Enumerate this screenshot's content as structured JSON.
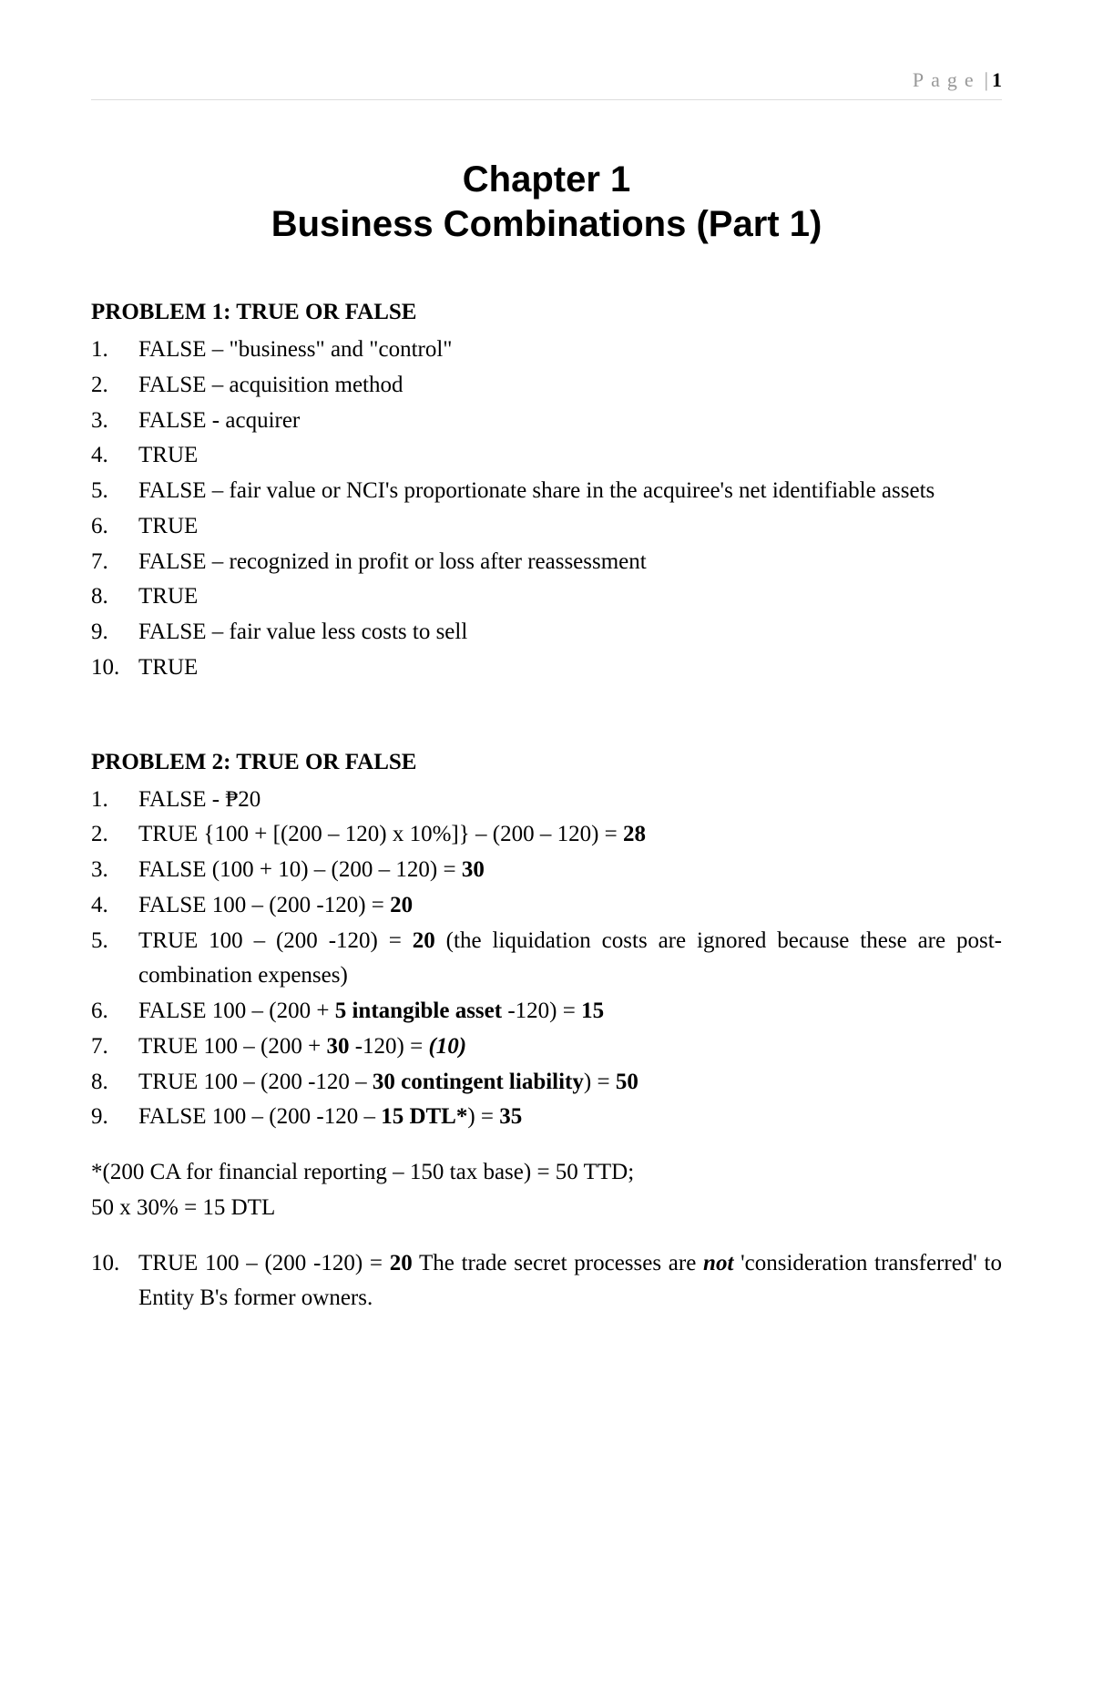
{
  "header": {
    "label": "Page",
    "separator": "|",
    "number": "1"
  },
  "chapter": {
    "line1": "Chapter 1",
    "line2": "Business Combinations (Part 1)"
  },
  "problem1": {
    "heading": "PROBLEM 1: TRUE OR FALSE",
    "items": [
      {
        "n": "1.",
        "parts": [
          {
            "t": "FALSE – \"business\" and \"control\""
          }
        ]
      },
      {
        "n": "2.",
        "parts": [
          {
            "t": "FALSE – acquisition method"
          }
        ]
      },
      {
        "n": "3.",
        "parts": [
          {
            "t": "FALSE - acquirer"
          }
        ]
      },
      {
        "n": "4.",
        "parts": [
          {
            "t": "TRUE"
          }
        ]
      },
      {
        "n": "5.",
        "justify": true,
        "parts": [
          {
            "t": "FALSE – fair value or NCI's proportionate share in the acquiree's net identifiable assets"
          }
        ]
      },
      {
        "n": "6.",
        "parts": [
          {
            "t": "TRUE"
          }
        ]
      },
      {
        "n": "7.",
        "parts": [
          {
            "t": "FALSE – recognized in profit or loss after reassessment"
          }
        ]
      },
      {
        "n": "8.",
        "parts": [
          {
            "t": "TRUE"
          }
        ]
      },
      {
        "n": "9.",
        "parts": [
          {
            "t": "FALSE – fair value less costs to sell"
          }
        ]
      },
      {
        "n": "10.",
        "parts": [
          {
            "t": "TRUE"
          }
        ]
      }
    ]
  },
  "problem2": {
    "heading": "PROBLEM 2: TRUE OR FALSE",
    "items": [
      {
        "n": "1.",
        "parts": [
          {
            "t": "FALSE - ₱20"
          }
        ]
      },
      {
        "n": "2.",
        "parts": [
          {
            "t": "TRUE {100 + [(200 – 120) x 10%]} – (200 – 120) = "
          },
          {
            "t": "28",
            "b": true
          }
        ]
      },
      {
        "n": "3.",
        "parts": [
          {
            "t": "FALSE (100 + 10) – (200 – 120) = "
          },
          {
            "t": "30",
            "b": true
          }
        ]
      },
      {
        "n": "4.",
        "parts": [
          {
            "t": "FALSE 100 – (200 -120) = "
          },
          {
            "t": "20",
            "b": true
          }
        ]
      },
      {
        "n": "5.",
        "justify": true,
        "parts": [
          {
            "t": "TRUE 100 – (200 -120) = "
          },
          {
            "t": "20",
            "b": true
          },
          {
            "t": " (the liquidation costs are ignored because these are post-combination expenses)"
          }
        ]
      },
      {
        "n": "6.",
        "parts": [
          {
            "t": "FALSE 100 – (200 + "
          },
          {
            "t": "5 intangible asset",
            "b": true
          },
          {
            "t": " -120) = "
          },
          {
            "t": "15",
            "b": true
          }
        ]
      },
      {
        "n": "7.",
        "parts": [
          {
            "t": "TRUE 100 – (200 + "
          },
          {
            "t": "30",
            "b": true
          },
          {
            "t": " -120) = "
          },
          {
            "t": "(10)",
            "bi": true
          }
        ]
      },
      {
        "n": "8.",
        "parts": [
          {
            "t": "TRUE 100 – (200 -120 – "
          },
          {
            "t": "30 contingent liability",
            "b": true
          },
          {
            "t": ") = "
          },
          {
            "t": "50",
            "b": true
          }
        ]
      },
      {
        "n": "9.",
        "parts": [
          {
            "t": "FALSE 100 – (200 -120 – "
          },
          {
            "t": "15 DTL*",
            "b": true
          },
          {
            "t": ") = "
          },
          {
            "t": "35",
            "b": true
          }
        ]
      }
    ],
    "footnote": {
      "l1": "*(200 CA for financial reporting – 150 tax base) = 50 TTD;",
      "l2": "50 x 30% = 15 DTL"
    },
    "items2": [
      {
        "n": "10.",
        "justify": true,
        "parts": [
          {
            "t": "TRUE 100 – (200 -120) = "
          },
          {
            "t": "20",
            "b": true
          },
          {
            "t": " The trade secret processes are "
          },
          {
            "t": "not",
            "bi": true
          },
          {
            "t": " 'consideration transferred' to Entity B's former owners."
          }
        ]
      }
    ]
  }
}
